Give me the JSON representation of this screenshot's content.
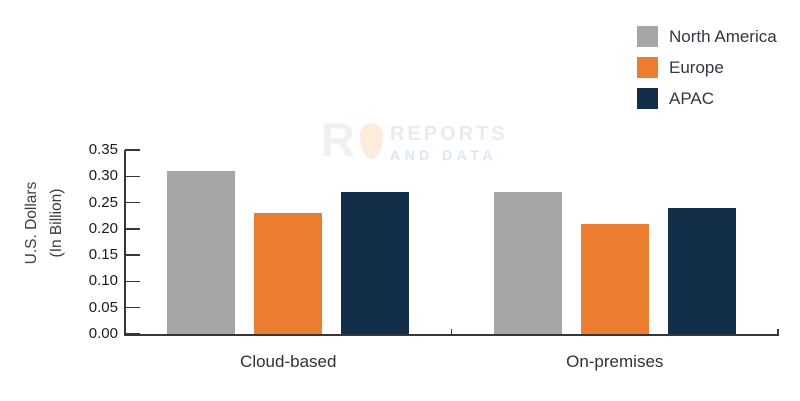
{
  "y_axis": {
    "title_line1": "U.S. Dollars",
    "title_line2": "(In Billion)"
  },
  "watermark": {
    "logo_letter": "R",
    "line1": "REPORTS",
    "line2": "AND DATA"
  },
  "colors": {
    "north_america": "#a6a6a6",
    "europe": "#ed7d31",
    "apac": "#132e49",
    "axis": "#35363a"
  },
  "chart_data": {
    "type": "bar",
    "categories": [
      "Cloud-based",
      "On-premises"
    ],
    "series": [
      {
        "name": "North America",
        "color": "#a6a6a6",
        "values": [
          0.31,
          0.27
        ]
      },
      {
        "name": "Europe",
        "color": "#ed7d31",
        "values": [
          0.23,
          0.21
        ]
      },
      {
        "name": "APAC",
        "color": "#132e49",
        "values": [
          0.27,
          0.24
        ]
      }
    ],
    "title": "",
    "xlabel": "",
    "ylabel": "U.S. Dollars (In Billion)",
    "ylim": [
      0,
      0.35
    ],
    "ytick_step": 0.05,
    "ytick_labels": [
      "0.00",
      "0.05",
      "0.10",
      "0.15",
      "0.20",
      "0.25",
      "0.30",
      "0.35"
    ],
    "grid": false,
    "legend_position": "top-right"
  }
}
